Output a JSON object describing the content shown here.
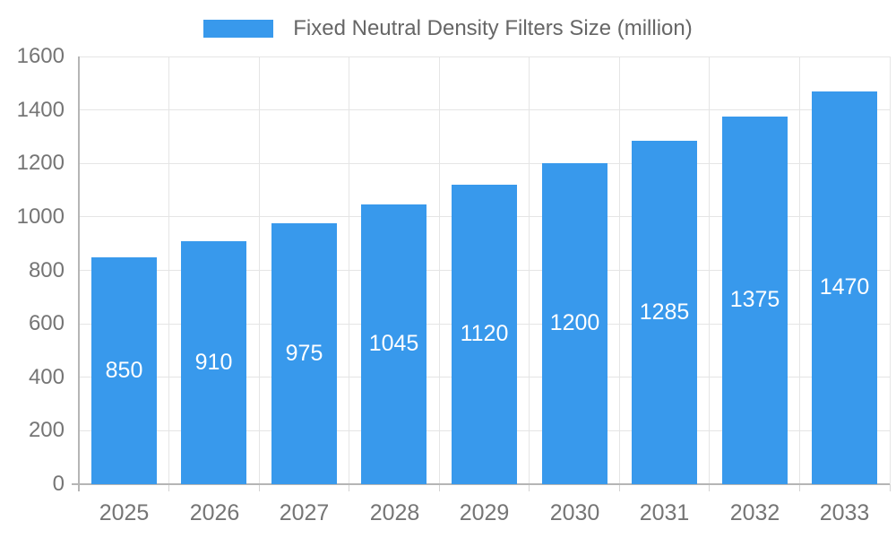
{
  "legend": {
    "label": "Fixed Neutral Density Filters Size (million)"
  },
  "chart_data": {
    "type": "bar",
    "title": "Fixed Neutral Density Filters Size (million)",
    "categories": [
      "2025",
      "2026",
      "2027",
      "2028",
      "2029",
      "2030",
      "2031",
      "2032",
      "2033"
    ],
    "values": [
      850,
      910,
      975,
      1045,
      1120,
      1200,
      1285,
      1375,
      1470
    ],
    "xlabel": "",
    "ylabel": "",
    "ylim": [
      0,
      1600
    ],
    "ytick_step": 200,
    "grid": true,
    "legend_position": "top",
    "bar_value_labels_inside": true
  },
  "colors": {
    "bar": "#3899EC",
    "grid": "#e5e5e5",
    "axis": "#b5b5b5",
    "tick": "#d4d4d4",
    "tick_label": "#757575",
    "legend_text": "#666666",
    "bar_label": "#ffffff",
    "background": "#ffffff"
  }
}
